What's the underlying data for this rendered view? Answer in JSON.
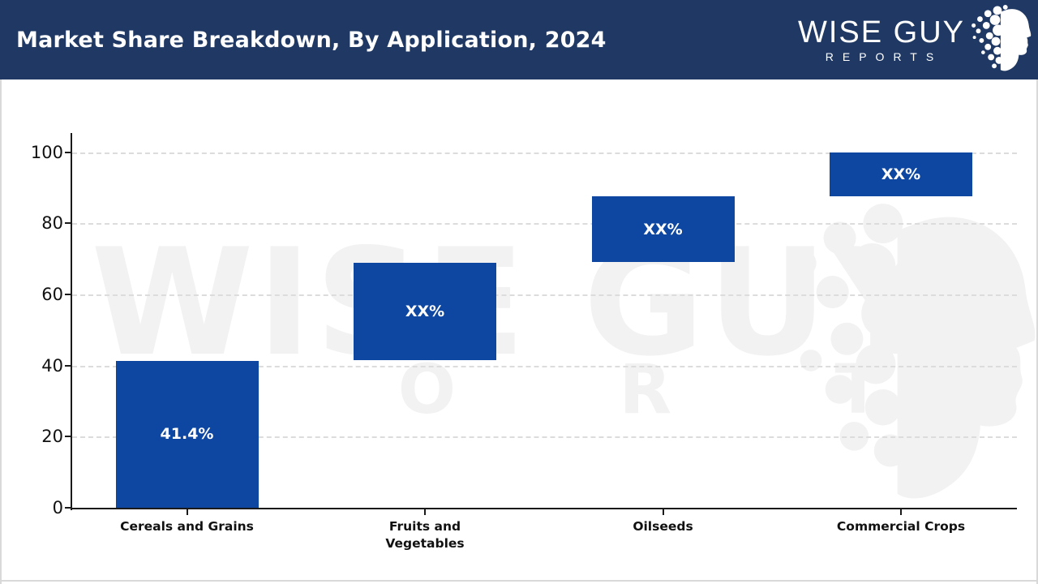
{
  "header": {
    "title": "Market Share Breakdown, By Application, 2024",
    "bg_color": "#1f3864",
    "logo": {
      "line1": "WISE GUY",
      "line2": "REPORTS"
    }
  },
  "watermark": {
    "line1": "WISE GUY",
    "line2": "P O R T S"
  },
  "chart_data": {
    "type": "bar",
    "subtype": "waterfall",
    "title": "Market Share Breakdown, By Application, 2024",
    "categories": [
      "Cereals and Grains",
      "Fruits and\nVegetables",
      "Oilseeds",
      "Commercial Crops"
    ],
    "segments": [
      {
        "category": "Cereals and Grains",
        "start": 0,
        "end": 41.4,
        "label": "41.4%"
      },
      {
        "category": "Fruits and Vegetables",
        "start": 41.4,
        "end": 69,
        "label": "XX%"
      },
      {
        "category": "Oilseeds",
        "start": 69,
        "end": 87.5,
        "label": "XX%"
      },
      {
        "category": "Commercial Crops",
        "start": 87.5,
        "end": 100,
        "label": "XX%"
      }
    ],
    "ylim": [
      0,
      100
    ],
    "yticks": [
      0,
      20,
      40,
      60,
      80,
      100
    ],
    "grid": "horizontal dashed",
    "legend": "none",
    "bar_color": "#0d47a1",
    "value_label_color": "#ffffff"
  }
}
